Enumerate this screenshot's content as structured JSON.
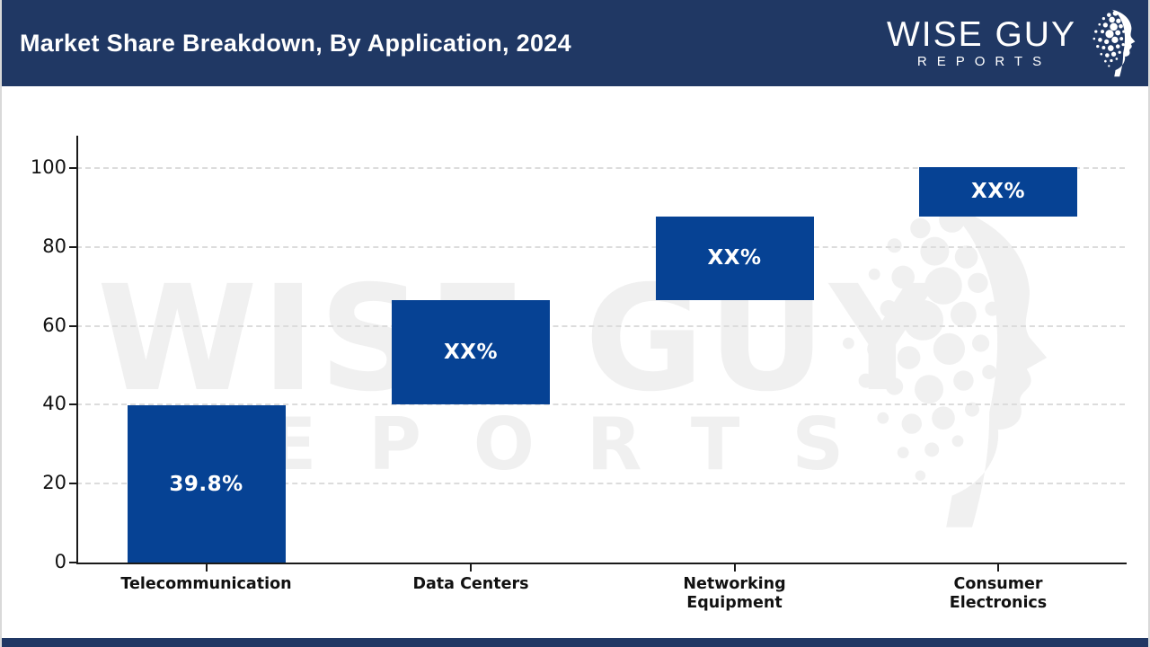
{
  "page": {
    "background": "#ffffff",
    "border_color": "#d9d9d9"
  },
  "header": {
    "bg_color": "#203864",
    "title": "Market Share Breakdown, By Application, 2024",
    "brand": {
      "line1": "WISE GUY",
      "line2": "REPORTS"
    }
  },
  "watermark": {
    "line1": "WISE GUY",
    "line2": "REPORTS"
  },
  "chart_data": {
    "type": "bar",
    "subtype": "floating-waterfall",
    "title": "Market Share Breakdown, By Application, 2024",
    "categories": [
      "Telecommunication",
      "Data Centers",
      "Networking Equipment",
      "Consumer Electronics"
    ],
    "category_lines": [
      [
        "Telecommunication"
      ],
      [
        "Data Centers"
      ],
      [
        "Networking",
        "Equipment"
      ],
      [
        "Consumer",
        "Electronics"
      ]
    ],
    "segments": [
      {
        "category": "Telecommunication",
        "start": 0,
        "end": 39.8,
        "value": 39.8,
        "label": "39.8%"
      },
      {
        "category": "Data Centers",
        "start": 40,
        "end": 66.5,
        "value": 26.5,
        "label": "XX%"
      },
      {
        "category": "Networking Equipment",
        "start": 66.5,
        "end": 87.8,
        "value": 21.3,
        "label": "XX%"
      },
      {
        "category": "Consumer Electronics",
        "start": 87.8,
        "end": 100.3,
        "value": 12.5,
        "label": "XX%"
      }
    ],
    "yticks": [
      0,
      20,
      40,
      60,
      80,
      100
    ],
    "ylim": [
      0,
      100
    ],
    "xlabel": "",
    "ylabel": "",
    "bar_color": "#064294",
    "grid": "horizontal-dashed",
    "gridline_color": "#dcdcdc",
    "axis_color": "#1a1a1a",
    "value_label_color": "#ffffff"
  }
}
